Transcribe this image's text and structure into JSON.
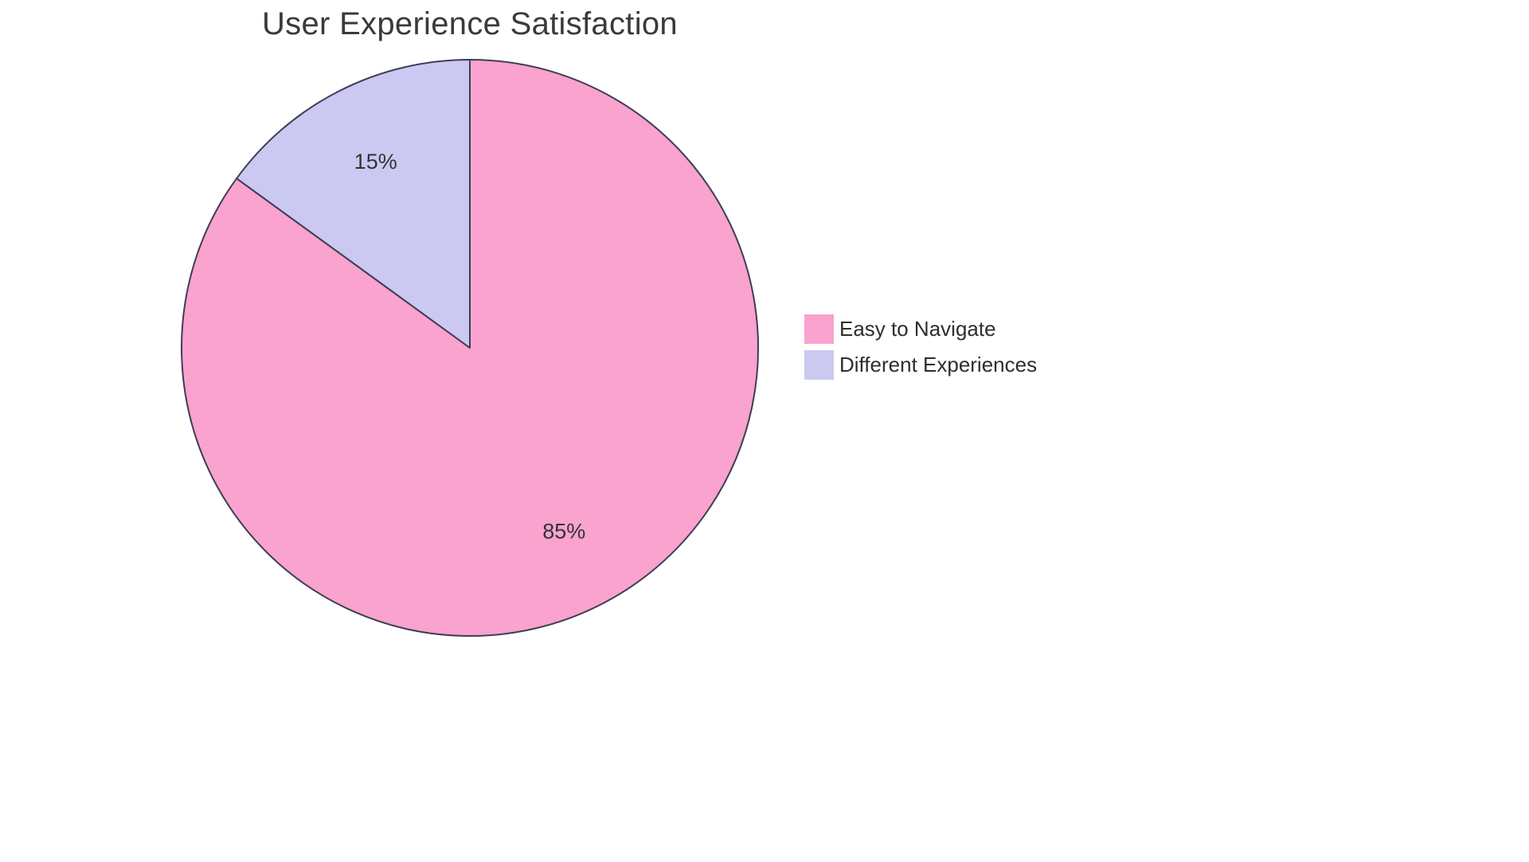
{
  "page": {
    "background_color": "#FFFFFF"
  },
  "chart_data": {
    "type": "pie",
    "title": "User Experience Satisfaction",
    "labels": [
      "Easy to Navigate",
      "Different Experiences"
    ],
    "values": [
      85,
      15
    ],
    "value_labels": [
      "85%",
      "15%"
    ],
    "colors": [
      "#F9A3CE",
      "#CBC9F1"
    ],
    "stroke_color": "#3F3D56",
    "stroke_width": 2,
    "start_angle_deg": -90,
    "direction": "clockwise",
    "legend_position": "right",
    "title_color": "#3A3A3A",
    "slice_label_color": "#333333",
    "slice_label_font_size": 27,
    "legend_entries": [
      "Easy to Navigate",
      "Different Experiences"
    ]
  }
}
